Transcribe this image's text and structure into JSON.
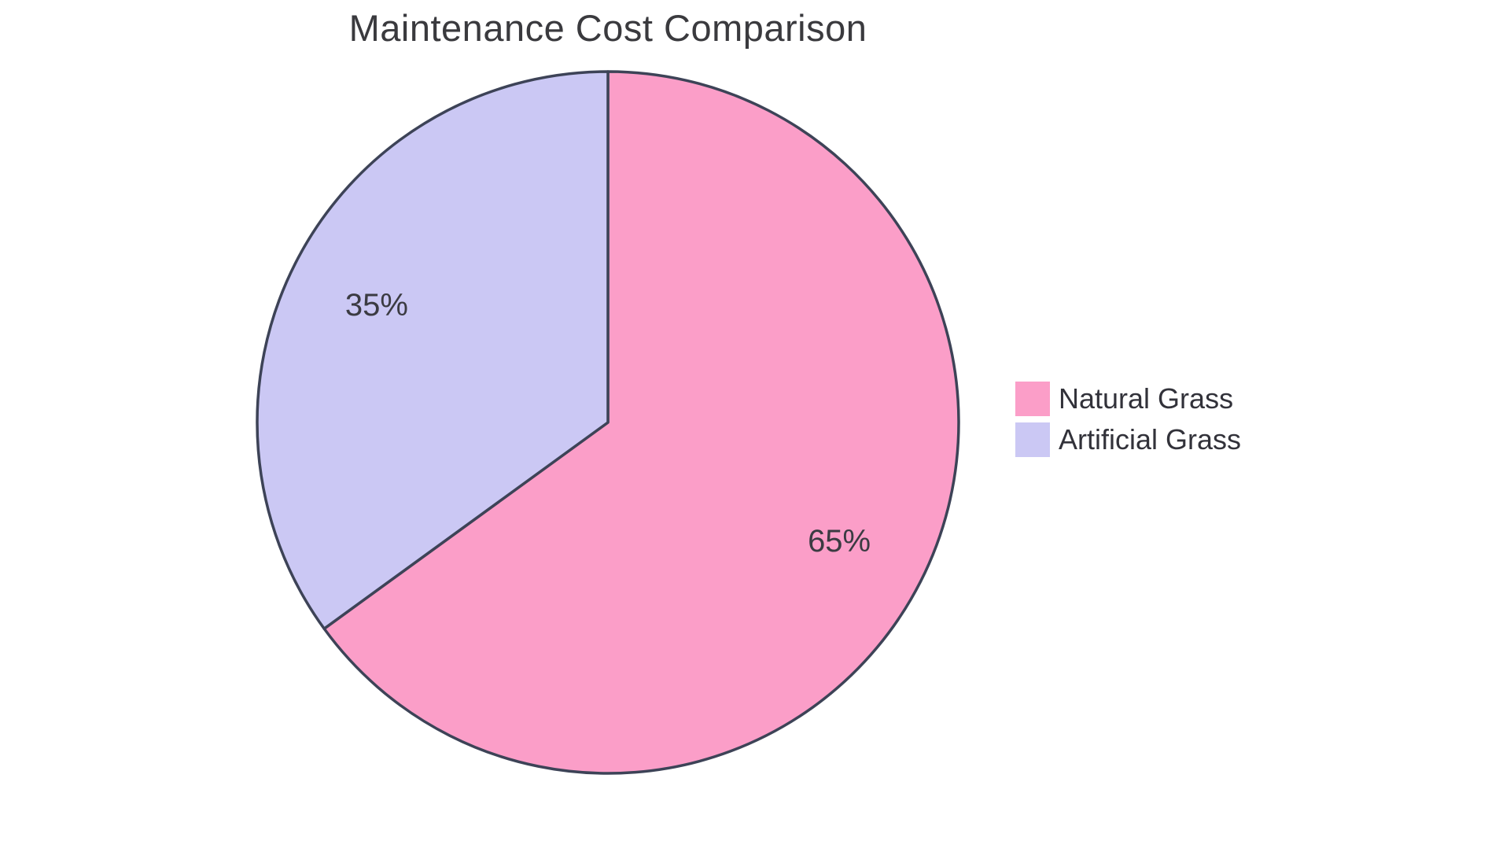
{
  "page": {
    "background_color": "#FFFFFF"
  },
  "chart_data": {
    "type": "pie",
    "title": "Maintenance Cost Comparison",
    "labels": [
      "Natural Grass",
      "Artificial Grass"
    ],
    "values": [
      65,
      35
    ],
    "value_labels": [
      "65%",
      "35%"
    ],
    "colors": [
      "#FB9EC8",
      "#CBC8F4"
    ],
    "slice_border_color": "#3D4357",
    "slice_border_width": 3.5,
    "start_angle": "12-oclock",
    "direction": "clockwise",
    "label_position": "inside",
    "legend_position": "right",
    "title_color": "#3A3A3E",
    "label_text_color": "#3B3B42",
    "legend_text_color": "#32323A",
    "grid": "off"
  }
}
